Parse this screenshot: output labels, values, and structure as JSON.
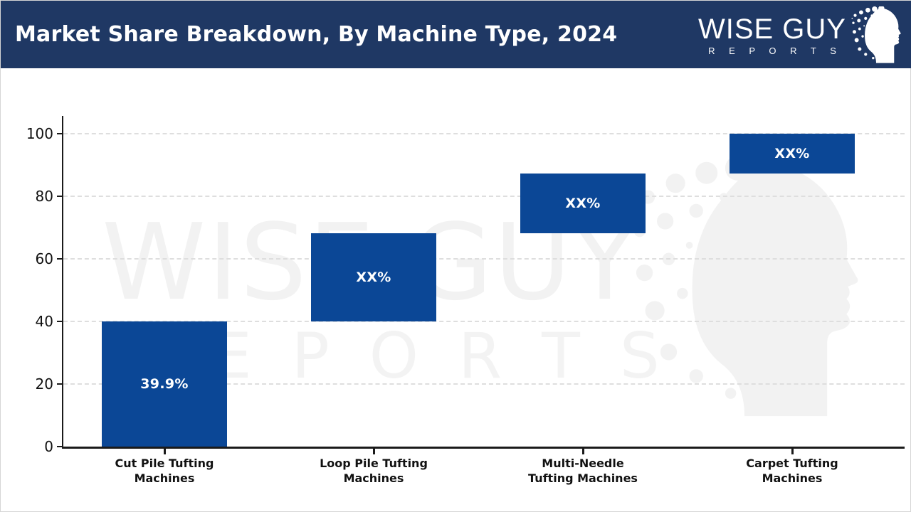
{
  "header": {
    "title": "Market Share Breakdown, By Machine Type, 2024",
    "logo": {
      "name": "WISE GUY",
      "sub": "R E P O R T S"
    }
  },
  "watermark": {
    "line1": "WISE GUY",
    "line2": "R E P O R T S"
  },
  "colors": {
    "header_bg": "#1f3864",
    "bar": "#0b4796",
    "axis": "#1a1a1a",
    "grid": "#dedede",
    "tick_text": "#111111",
    "bar_label_text": "#ffffff",
    "watermark": "#f2f2f2"
  },
  "chart_data": {
    "type": "bar",
    "subtype": "floating-segment-breakdown",
    "title": "Market Share Breakdown, By Machine Type, 2024",
    "categories": [
      [
        "Cut Pile Tufting",
        "Machines"
      ],
      [
        "Loop Pile Tufting",
        "Machines"
      ],
      [
        "Multi-Needle",
        "Tufting Machines"
      ],
      [
        "Carpet Tufting",
        "Machines"
      ]
    ],
    "segments": [
      {
        "label": "39.9%",
        "start": 0,
        "end": 39.9
      },
      {
        "label": "XX%",
        "start": 39.9,
        "end": 68.1
      },
      {
        "label": "XX%",
        "start": 68.1,
        "end": 87.2
      },
      {
        "label": "XX%",
        "start": 87.2,
        "end": 100
      }
    ],
    "y_ticks": [
      0,
      20,
      40,
      60,
      80,
      100
    ],
    "ylim": [
      0,
      105
    ],
    "xlabel": "",
    "ylabel": "",
    "grid": "horizontal-dashed",
    "legend": "none",
    "bar_color": "#0b4796"
  }
}
